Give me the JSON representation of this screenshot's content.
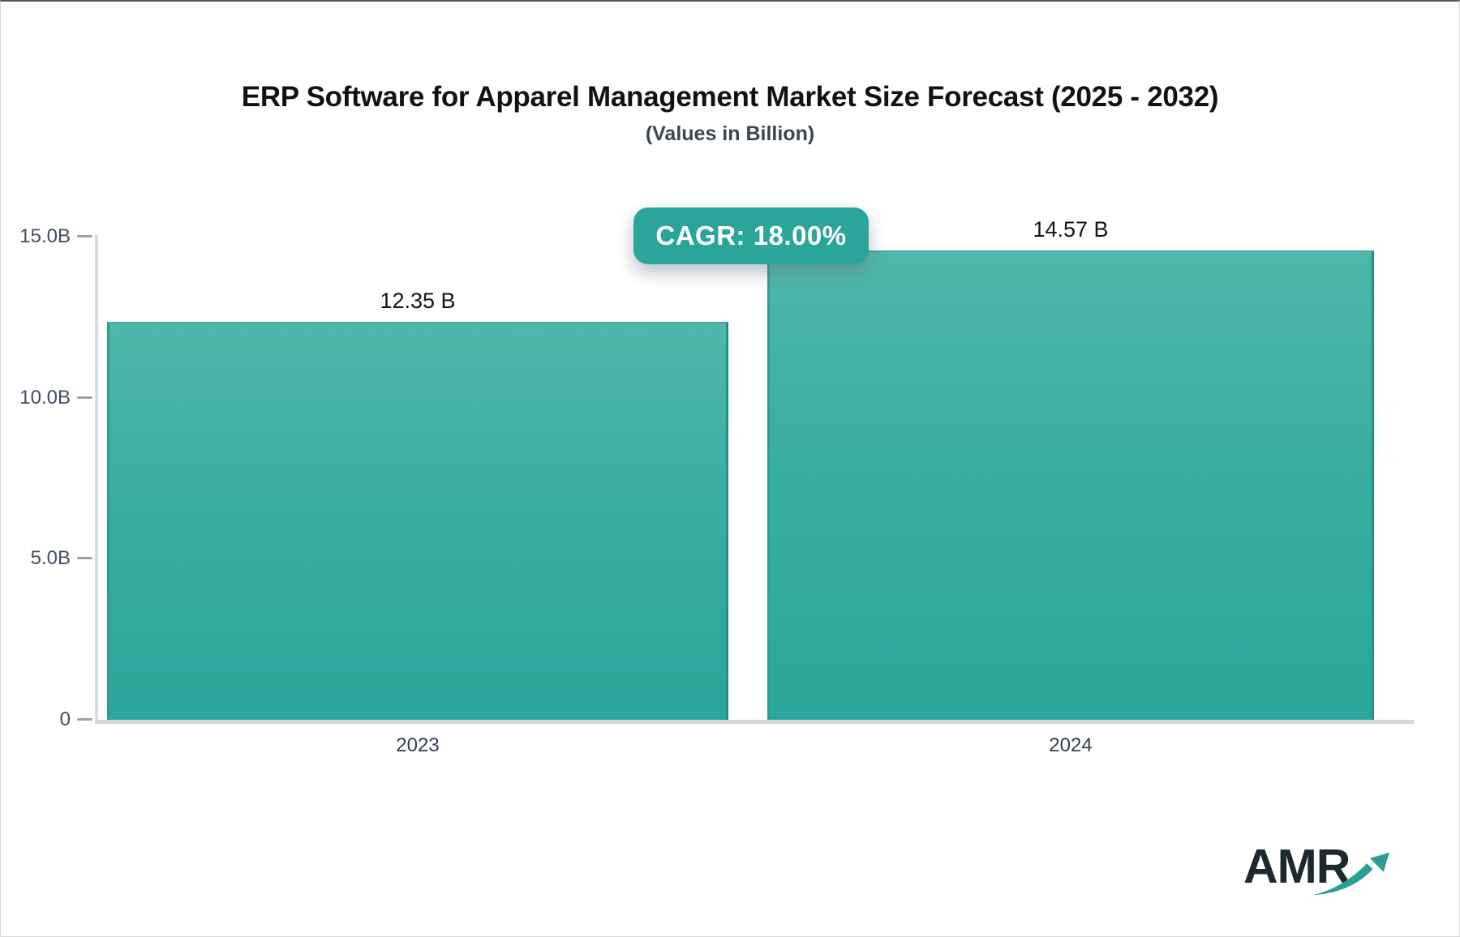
{
  "badge": {
    "text": "CAGR: 18.00%"
  },
  "logo": {
    "text": "AMR",
    "arrow_icon": "trend-arrow-icon"
  },
  "chart_data": {
    "type": "bar",
    "title": "ERP Software for Apparel Management Market Size Forecast (2025 - 2032)",
    "subtitle": "(Values in Billion)",
    "unit": "Billion",
    "categories": [
      "2023",
      "2024"
    ],
    "series": [
      {
        "name": "Market Size",
        "values": [
          12.35,
          14.57
        ]
      }
    ],
    "value_labels": [
      "12.35 B",
      "14.57 B"
    ],
    "yticks": [
      {
        "value": 0,
        "label": "0"
      },
      {
        "value": 5,
        "label": "5.0B"
      },
      {
        "value": 10,
        "label": "10.0B"
      },
      {
        "value": 15,
        "label": "15.0B"
      }
    ],
    "ylim": [
      0,
      15
    ],
    "grid": false,
    "legend": false,
    "cagr_label": "CAGR: 18.00%",
    "colors": {
      "bar_top": "#4eb7aa",
      "bar_bottom": "#29a79a",
      "bar_edge_left": "#2e9e92",
      "bar_edge_right": "#1f9186",
      "badge_bg": "#2aa59a",
      "axis_line": "#d9dde2",
      "tick_dash": "#97a1ac",
      "tick_text": "#414e63",
      "value_text": "#10151c",
      "title_text": "#101316",
      "logo_text": "#1c2930",
      "logo_arrow": "#2b9f94"
    }
  }
}
